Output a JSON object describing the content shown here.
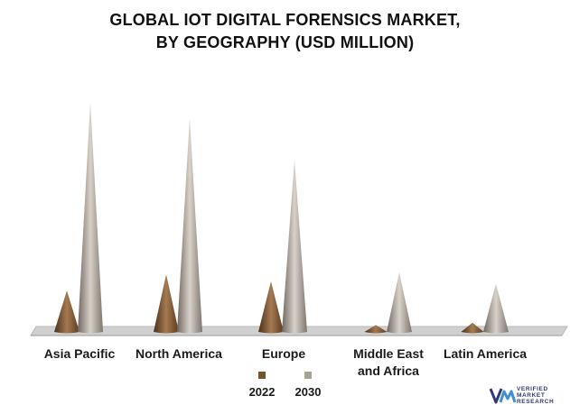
{
  "title_lines": [
    "GLOBAL IOT DIGITAL FORENSICS MARKET,",
    "BY GEOGRAPHY (USD MILLION)"
  ],
  "colors": {
    "series_2022": "#7a5230",
    "series_2030": "#aaa197",
    "floor": "#d0d0d0",
    "logo": "#2f3a73"
  },
  "logo": {
    "lines": [
      "VERIFIED",
      "MARKET",
      "RESEARCH"
    ]
  },
  "chart_data": {
    "type": "bar",
    "style": "cone",
    "title": "GLOBAL IOT DIGITAL FORENSICS MARKET, BY GEOGRAPHY (USD MILLION)",
    "categories": [
      "Asia Pacific",
      "North America",
      "Europe",
      "Middle East and Africa",
      "Latin America"
    ],
    "category_lines": [
      [
        "Asia Pacific"
      ],
      [
        "North America"
      ],
      [
        "Europe"
      ],
      [
        "Middle East",
        "and Africa"
      ],
      [
        "Latin America"
      ]
    ],
    "series": [
      {
        "name": "2022",
        "values": [
          18,
          25,
          22,
          3,
          4
        ]
      },
      {
        "name": "2030",
        "values": [
          100,
          93,
          75,
          26,
          21
        ]
      }
    ],
    "legend_position": "bottom",
    "grid": false,
    "note": "No value axis is printed; values are relative heights on a 0-100 scale."
  }
}
